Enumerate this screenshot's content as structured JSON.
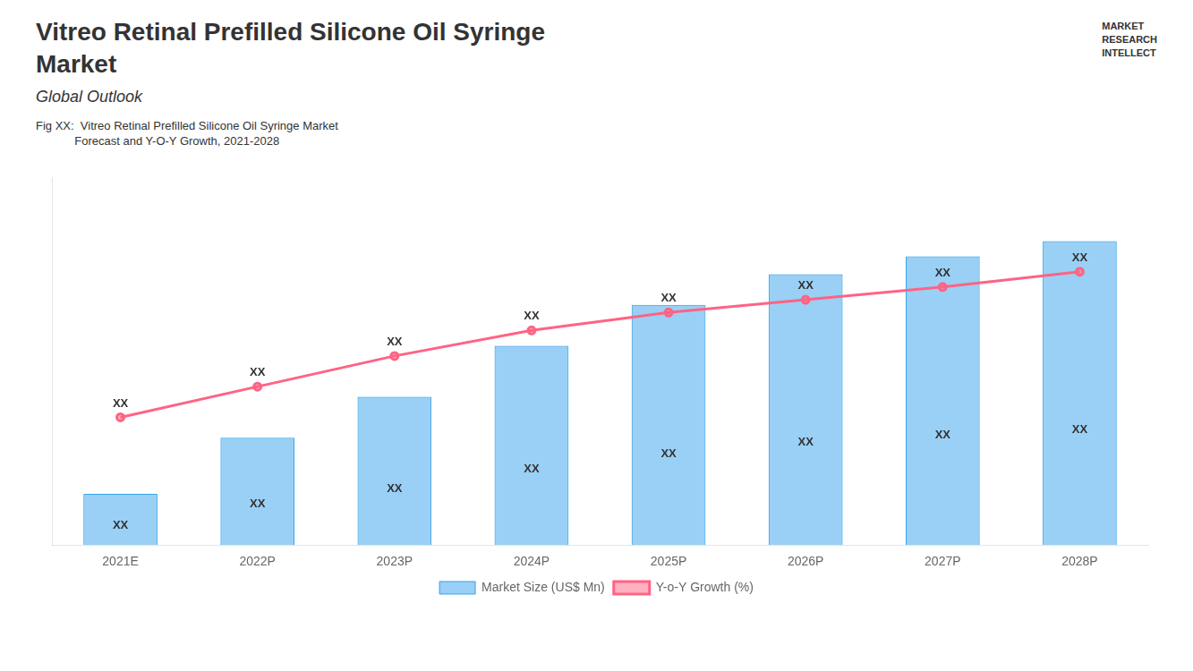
{
  "chart_data": {
    "type": "bar",
    "title": [
      "Vitreo Retinal Prefilled Silicone Oil Syringe",
      "Market"
    ],
    "subtitle": "Global Outlook",
    "annotations": [
      "Fig XX:  Vitreo Retinal Prefilled Silicone Oil Syringe Market",
      "            Forecast and Y-O-Y Growth, 2021-2028",
      "MARKET",
      "RESEARCH",
      "INTELLECT"
    ],
    "categories": [
      "2021E",
      "2022P",
      "2023P",
      "2024P",
      "2025P",
      "2026P",
      "2027P",
      "2028P"
    ],
    "series": [
      {
        "name": "Market Size (US$ Mn)",
        "type": "bar",
        "values": [
          1.0,
          2.1,
          2.9,
          3.9,
          4.7,
          5.3,
          5.65,
          5.95
        ],
        "value_labels": [
          "XX",
          "XX",
          "XX",
          "XX",
          "XX",
          "XX",
          "XX",
          "XX"
        ]
      },
      {
        "name": "Y-o-Y Growth (%)",
        "type": "line",
        "values": [
          2.5,
          3.1,
          3.7,
          4.2,
          4.55,
          4.8,
          5.05,
          5.35
        ],
        "value_labels": [
          "XX",
          "XX",
          "XX",
          "XX",
          "XX",
          "XX",
          "XX",
          "XX"
        ]
      }
    ],
    "ylim": [
      0,
      7.2
    ],
    "tick_labels": "x",
    "grid": false,
    "legend": "bottom",
    "data_labels": true
  }
}
